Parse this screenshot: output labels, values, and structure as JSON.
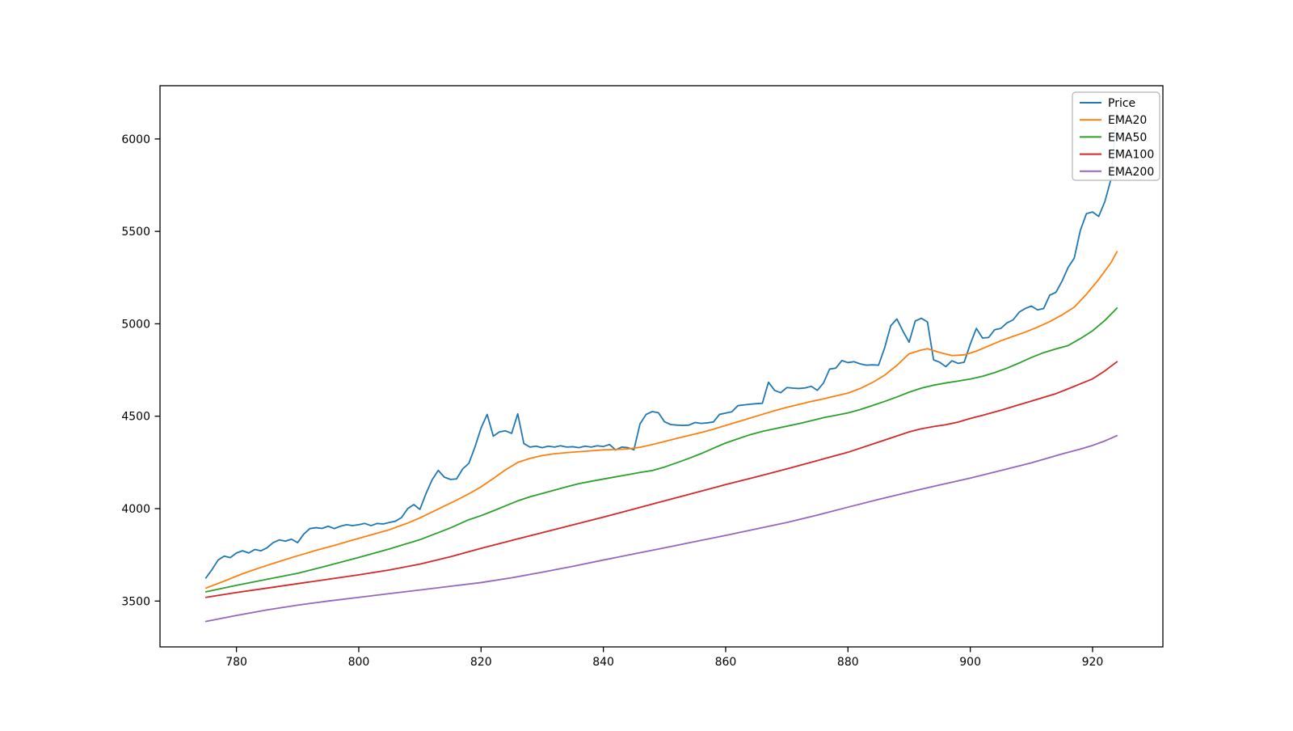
{
  "figure": {
    "background": "#ffffff",
    "axes_edge_color": "#000000",
    "tick_color": "#000000"
  },
  "legend": {
    "position": "upper right",
    "border_color": "#b5b5b5",
    "fill_color": "#ffffff",
    "fill_opacity": 0.9,
    "entries": [
      "Price",
      "EMA20",
      "EMA50",
      "EMA100",
      "EMA200"
    ]
  },
  "chart_data": {
    "type": "line",
    "title": "",
    "xlabel": "",
    "ylabel": "",
    "grid": false,
    "legend_position": "upper right",
    "xlim": [
      767.5,
      931.5
    ],
    "ylim": [
      3252,
      6288
    ],
    "x_ticks": [
      780,
      800,
      820,
      840,
      860,
      880,
      900,
      920
    ],
    "y_ticks": [
      3500,
      4000,
      4500,
      5000,
      5500,
      6000
    ],
    "series": [
      {
        "name": "Price",
        "color": "#1f77b4",
        "x_start": 775,
        "x_step": 1,
        "values": [
          3625,
          3670,
          3722,
          3743,
          3735,
          3760,
          3772,
          3760,
          3779,
          3772,
          3788,
          3816,
          3831,
          3824,
          3835,
          3816,
          3862,
          3892,
          3897,
          3893,
          3905,
          3892,
          3905,
          3913,
          3908,
          3913,
          3920,
          3908,
          3920,
          3917,
          3925,
          3932,
          3952,
          4000,
          4022,
          3996,
          4082,
          4156,
          4207,
          4170,
          4158,
          4161,
          4215,
          4245,
          4333,
          4436,
          4510,
          4392,
          4415,
          4421,
          4407,
          4513,
          4352,
          4333,
          4338,
          4330,
          4338,
          4333,
          4340,
          4333,
          4335,
          4330,
          4338,
          4333,
          4340,
          4336,
          4347,
          4318,
          4333,
          4330,
          4318,
          4459,
          4510,
          4525,
          4519,
          4470,
          4455,
          4452,
          4450,
          4452,
          4466,
          4461,
          4464,
          4469,
          4510,
          4517,
          4524,
          4557,
          4561,
          4565,
          4568,
          4570,
          4684,
          4640,
          4627,
          4655,
          4652,
          4650,
          4653,
          4662,
          4640,
          4680,
          4755,
          4760,
          4801,
          4790,
          4795,
          4783,
          4776,
          4778,
          4776,
          4870,
          4990,
          5026,
          4960,
          4900,
          5015,
          5030,
          5010,
          4805,
          4792,
          4768,
          4800,
          4786,
          4792,
          4890,
          4975,
          4923,
          4926,
          4968,
          4975,
          5005,
          5021,
          5063,
          5083,
          5096,
          5075,
          5083,
          5155,
          5170,
          5230,
          5305,
          5355,
          5505,
          5596,
          5605,
          5581,
          5660,
          5781,
          6150
        ]
      },
      {
        "name": "EMA20",
        "color": "#ff7f0e",
        "points": [
          [
            775,
            3570
          ],
          [
            778,
            3608
          ],
          [
            781,
            3648
          ],
          [
            784,
            3682
          ],
          [
            787,
            3714
          ],
          [
            790,
            3745
          ],
          [
            793,
            3774
          ],
          [
            796,
            3801
          ],
          [
            799,
            3830
          ],
          [
            802,
            3858
          ],
          [
            805,
            3886
          ],
          [
            808,
            3922
          ],
          [
            810,
            3950
          ],
          [
            812,
            3982
          ],
          [
            814,
            4014
          ],
          [
            816,
            4046
          ],
          [
            818,
            4080
          ],
          [
            820,
            4118
          ],
          [
            822,
            4163
          ],
          [
            824,
            4210
          ],
          [
            826,
            4250
          ],
          [
            828,
            4272
          ],
          [
            830,
            4287
          ],
          [
            832,
            4297
          ],
          [
            834,
            4303
          ],
          [
            836,
            4308
          ],
          [
            838,
            4313
          ],
          [
            840,
            4318
          ],
          [
            842,
            4320
          ],
          [
            844,
            4323
          ],
          [
            846,
            4332
          ],
          [
            848,
            4347
          ],
          [
            850,
            4363
          ],
          [
            852,
            4380
          ],
          [
            854,
            4396
          ],
          [
            856,
            4412
          ],
          [
            858,
            4430
          ],
          [
            860,
            4450
          ],
          [
            862,
            4470
          ],
          [
            864,
            4490
          ],
          [
            866,
            4510
          ],
          [
            868,
            4530
          ],
          [
            870,
            4548
          ],
          [
            872,
            4564
          ],
          [
            874,
            4580
          ],
          [
            876,
            4594
          ],
          [
            878,
            4610
          ],
          [
            880,
            4625
          ],
          [
            882,
            4650
          ],
          [
            884,
            4682
          ],
          [
            886,
            4722
          ],
          [
            888,
            4775
          ],
          [
            890,
            4838
          ],
          [
            892,
            4858
          ],
          [
            893,
            4865
          ],
          [
            895,
            4845
          ],
          [
            897,
            4828
          ],
          [
            899,
            4832
          ],
          [
            901,
            4852
          ],
          [
            903,
            4880
          ],
          [
            905,
            4908
          ],
          [
            907,
            4932
          ],
          [
            909,
            4955
          ],
          [
            911,
            4982
          ],
          [
            913,
            5012
          ],
          [
            915,
            5048
          ],
          [
            917,
            5090
          ],
          [
            919,
            5160
          ],
          [
            921,
            5240
          ],
          [
            923,
            5330
          ],
          [
            924,
            5390
          ]
        ]
      },
      {
        "name": "EMA50",
        "color": "#2ca02c",
        "points": [
          [
            775,
            3550
          ],
          [
            780,
            3585
          ],
          [
            785,
            3618
          ],
          [
            790,
            3650
          ],
          [
            795,
            3692
          ],
          [
            800,
            3736
          ],
          [
            805,
            3782
          ],
          [
            810,
            3832
          ],
          [
            815,
            3896
          ],
          [
            818,
            3940
          ],
          [
            820,
            3962
          ],
          [
            822,
            3988
          ],
          [
            824,
            4015
          ],
          [
            826,
            4042
          ],
          [
            828,
            4064
          ],
          [
            830,
            4082
          ],
          [
            832,
            4100
          ],
          [
            834,
            4118
          ],
          [
            836,
            4135
          ],
          [
            838,
            4148
          ],
          [
            840,
            4160
          ],
          [
            842,
            4172
          ],
          [
            844,
            4184
          ],
          [
            846,
            4196
          ],
          [
            848,
            4206
          ],
          [
            850,
            4225
          ],
          [
            852,
            4248
          ],
          [
            854,
            4272
          ],
          [
            856,
            4298
          ],
          [
            858,
            4327
          ],
          [
            860,
            4355
          ],
          [
            862,
            4378
          ],
          [
            864,
            4400
          ],
          [
            866,
            4418
          ],
          [
            868,
            4432
          ],
          [
            870,
            4446
          ],
          [
            872,
            4460
          ],
          [
            874,
            4476
          ],
          [
            876,
            4492
          ],
          [
            878,
            4505
          ],
          [
            880,
            4518
          ],
          [
            882,
            4536
          ],
          [
            884,
            4558
          ],
          [
            886,
            4580
          ],
          [
            888,
            4604
          ],
          [
            890,
            4630
          ],
          [
            892,
            4652
          ],
          [
            894,
            4668
          ],
          [
            896,
            4680
          ],
          [
            898,
            4690
          ],
          [
            900,
            4701
          ],
          [
            902,
            4716
          ],
          [
            904,
            4736
          ],
          [
            906,
            4760
          ],
          [
            908,
            4788
          ],
          [
            910,
            4818
          ],
          [
            912,
            4844
          ],
          [
            914,
            4864
          ],
          [
            916,
            4882
          ],
          [
            918,
            4920
          ],
          [
            920,
            4962
          ],
          [
            922,
            5018
          ],
          [
            924,
            5085
          ]
        ]
      },
      {
        "name": "EMA100",
        "color": "#d62728",
        "points": [
          [
            775,
            3520
          ],
          [
            780,
            3546
          ],
          [
            785,
            3570
          ],
          [
            790,
            3594
          ],
          [
            795,
            3618
          ],
          [
            800,
            3642
          ],
          [
            805,
            3668
          ],
          [
            810,
            3700
          ],
          [
            815,
            3740
          ],
          [
            820,
            3785
          ],
          [
            825,
            3828
          ],
          [
            830,
            3870
          ],
          [
            835,
            3912
          ],
          [
            840,
            3954
          ],
          [
            845,
            3998
          ],
          [
            850,
            4042
          ],
          [
            855,
            4086
          ],
          [
            860,
            4130
          ],
          [
            865,
            4172
          ],
          [
            870,
            4215
          ],
          [
            875,
            4260
          ],
          [
            880,
            4305
          ],
          [
            885,
            4360
          ],
          [
            890,
            4415
          ],
          [
            892,
            4432
          ],
          [
            894,
            4444
          ],
          [
            896,
            4454
          ],
          [
            898,
            4468
          ],
          [
            900,
            4488
          ],
          [
            902,
            4505
          ],
          [
            905,
            4532
          ],
          [
            908,
            4562
          ],
          [
            910,
            4582
          ],
          [
            912,
            4602
          ],
          [
            914,
            4622
          ],
          [
            916,
            4648
          ],
          [
            918,
            4675
          ],
          [
            920,
            4702
          ],
          [
            922,
            4745
          ],
          [
            924,
            4795
          ]
        ]
      },
      {
        "name": "EMA200",
        "color": "#9467bd",
        "points": [
          [
            775,
            3390
          ],
          [
            780,
            3422
          ],
          [
            785,
            3452
          ],
          [
            790,
            3478
          ],
          [
            795,
            3500
          ],
          [
            800,
            3520
          ],
          [
            805,
            3540
          ],
          [
            810,
            3560
          ],
          [
            815,
            3580
          ],
          [
            820,
            3600
          ],
          [
            825,
            3626
          ],
          [
            830,
            3656
          ],
          [
            835,
            3688
          ],
          [
            840,
            3722
          ],
          [
            845,
            3755
          ],
          [
            850,
            3788
          ],
          [
            855,
            3822
          ],
          [
            860,
            3855
          ],
          [
            865,
            3890
          ],
          [
            870,
            3925
          ],
          [
            875,
            3965
          ],
          [
            880,
            4008
          ],
          [
            885,
            4050
          ],
          [
            890,
            4090
          ],
          [
            895,
            4128
          ],
          [
            900,
            4165
          ],
          [
            905,
            4206
          ],
          [
            910,
            4248
          ],
          [
            915,
            4296
          ],
          [
            918,
            4322
          ],
          [
            920,
            4342
          ],
          [
            922,
            4366
          ],
          [
            924,
            4395
          ]
        ]
      }
    ]
  }
}
